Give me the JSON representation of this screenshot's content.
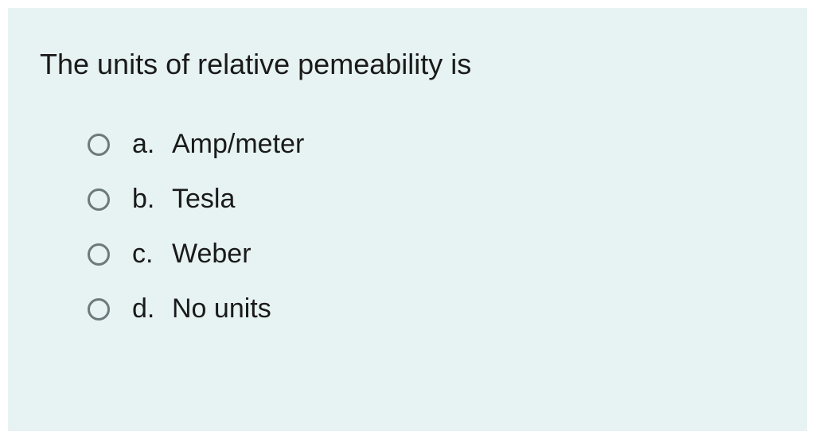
{
  "question": {
    "text": "The units of relative pemeability is",
    "background_color": "#e7f2f2",
    "text_color": "#1a1a1a",
    "fontsize": 36,
    "options": [
      {
        "letter": "a.",
        "text": "Amp/meter",
        "selected": false
      },
      {
        "letter": "b.",
        "text": "Tesla",
        "selected": false
      },
      {
        "letter": "c.",
        "text": "Weber",
        "selected": false
      },
      {
        "letter": "d.",
        "text": "No units",
        "selected": false
      }
    ],
    "radio_style": {
      "border_color": "#6b7a7a",
      "border_width": 3,
      "size": 28
    },
    "option_fontsize": 34
  }
}
